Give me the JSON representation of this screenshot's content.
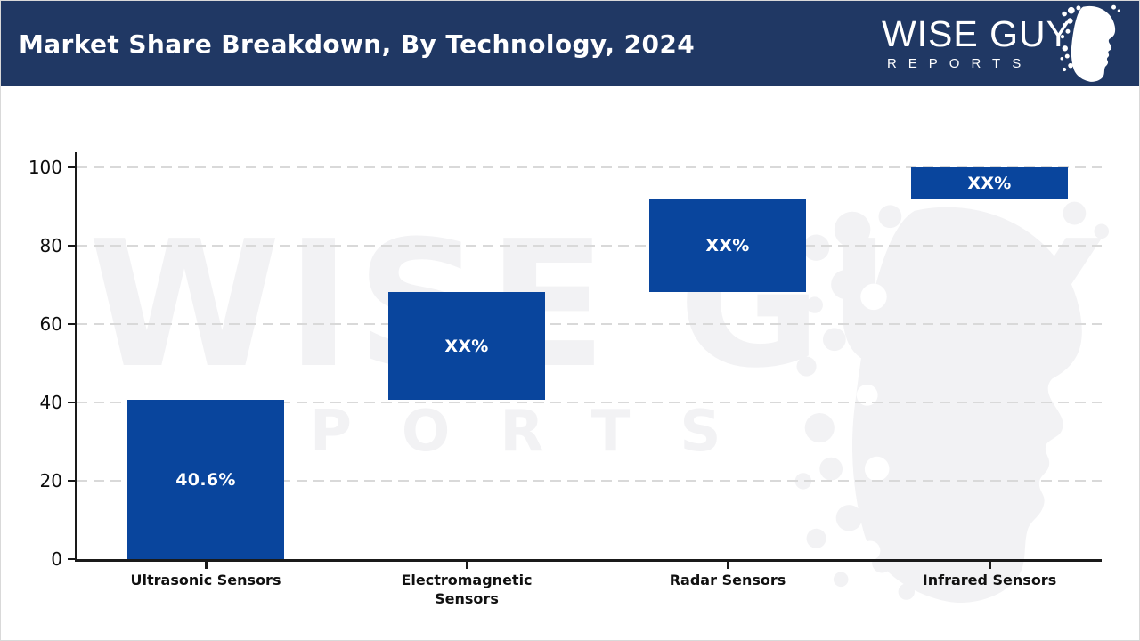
{
  "header": {
    "title": "Market Share Breakdown, By Technology, 2024",
    "logo": {
      "name": "WISE GUY",
      "subtitle": "REPORTS"
    }
  },
  "watermark": {
    "line1": "WISE GUY",
    "line2": "REPORTS"
  },
  "colors": {
    "header_bg": "#203864",
    "bar": "#09459D",
    "axis": "#1a1a1a",
    "grid": "#d9d9d9",
    "watermark": "#f2f2f4",
    "bar_label": "#ffffff",
    "title_text": "#ffffff"
  },
  "chart_data": {
    "type": "bar",
    "variant": "waterfall",
    "title": "Market Share Breakdown, By Technology, 2024",
    "categories": [
      "Ultrasonic Sensors",
      "Electromagnetic Sensors",
      "Radar Sensors",
      "Infrared Sensors"
    ],
    "segments": [
      {
        "category": "Ultrasonic Sensors",
        "start": 0,
        "end": 40.6,
        "label": "40.6%"
      },
      {
        "category": "Electromagnetic Sensors",
        "start": 40.6,
        "end": 68.2,
        "label": "XX%"
      },
      {
        "category": "Radar Sensors",
        "start": 68.2,
        "end": 91.8,
        "label": "XX%"
      },
      {
        "category": "Infrared Sensors",
        "start": 91.8,
        "end": 100,
        "label": "XX%"
      }
    ],
    "xlabel": "",
    "ylabel": "",
    "ylim": [
      0,
      100
    ],
    "yticks": [
      0,
      20,
      40,
      60,
      80,
      100
    ],
    "grid": "horizontal dashed",
    "legend": "none"
  }
}
